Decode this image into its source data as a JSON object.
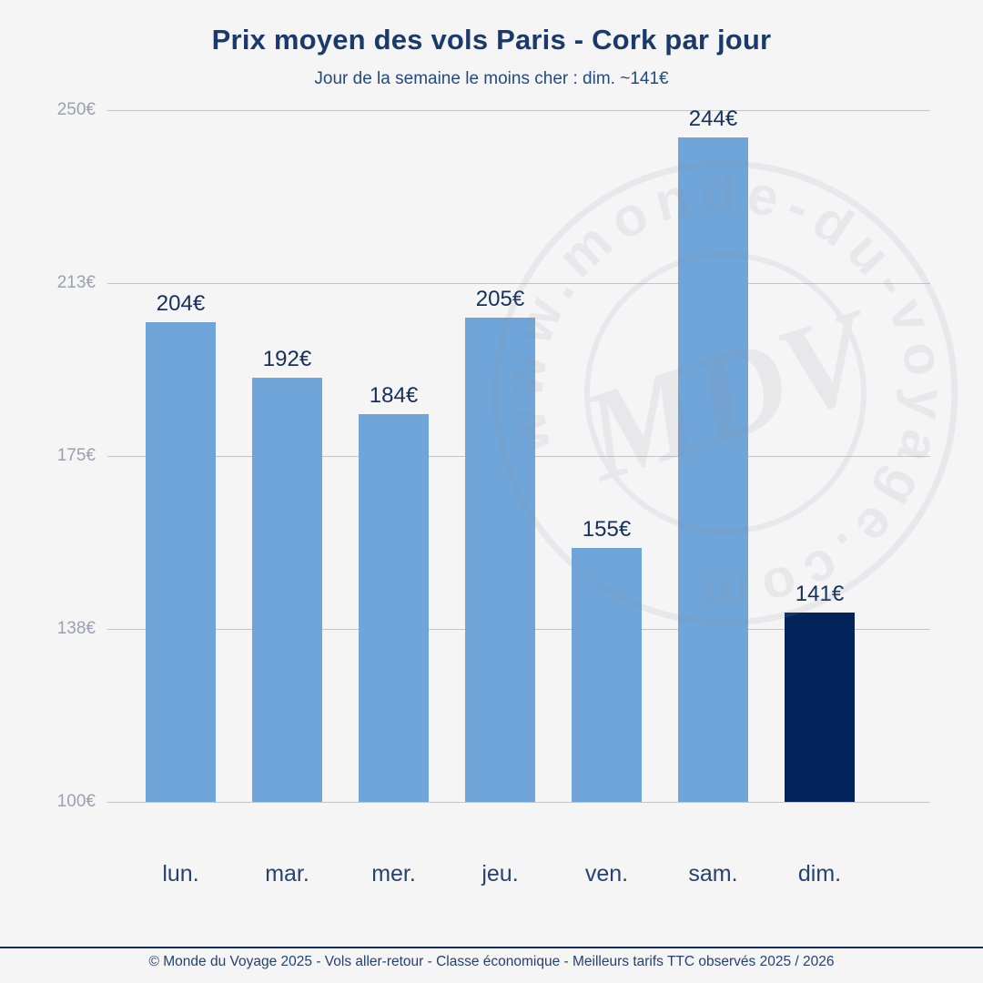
{
  "header": {
    "title": "Prix moyen des vols Paris - Cork par jour",
    "subtitle": "Jour de la semaine le moins cher : dim. ~141€"
  },
  "chart_data": {
    "type": "bar",
    "title": "Prix moyen des vols Paris - Cork par jour",
    "subtitle": "Jour de la semaine le moins cher : dim. ~141€",
    "categories": [
      "lun.",
      "mar.",
      "mer.",
      "jeu.",
      "ven.",
      "sam.",
      "dim."
    ],
    "values": [
      204,
      192,
      184,
      205,
      155,
      244,
      141
    ],
    "value_labels": [
      "204€",
      "192€",
      "184€",
      "205€",
      "155€",
      "244€",
      "141€"
    ],
    "highlight_index": 6,
    "xlabel": "",
    "ylabel": "",
    "ylim": [
      100,
      250
    ],
    "yticks": [
      250,
      212.5,
      175,
      137.5,
      100
    ],
    "ytick_labels": [
      "250€",
      "213€",
      "175€",
      "138€",
      "100€"
    ],
    "grid": true,
    "legend": false,
    "bar_color": "#6fa5d9",
    "highlight_color": "#03245a"
  },
  "watermark": {
    "ring_text": "www.monde-du-voyage.com",
    "center_text": "MDV"
  },
  "footer": {
    "text": "© Monde du Voyage 2025 - Vols aller-retour - Classe économique - Meilleurs tarifs TTC observés 2025 / 2026"
  },
  "colors": {
    "background": "#f5f5f6",
    "title": "#1b3a6b",
    "subtitle": "#234a80",
    "bar": "#6fa5d9",
    "bar_highlight": "#03245a",
    "gridline": "#bfc4ce",
    "ytick_label": "#99a1b0",
    "value_label": "#152f5e",
    "xtick_label": "#26436f",
    "footer_line": "#132f5e",
    "footer_text": "#25416f",
    "watermark": "#90949f"
  }
}
